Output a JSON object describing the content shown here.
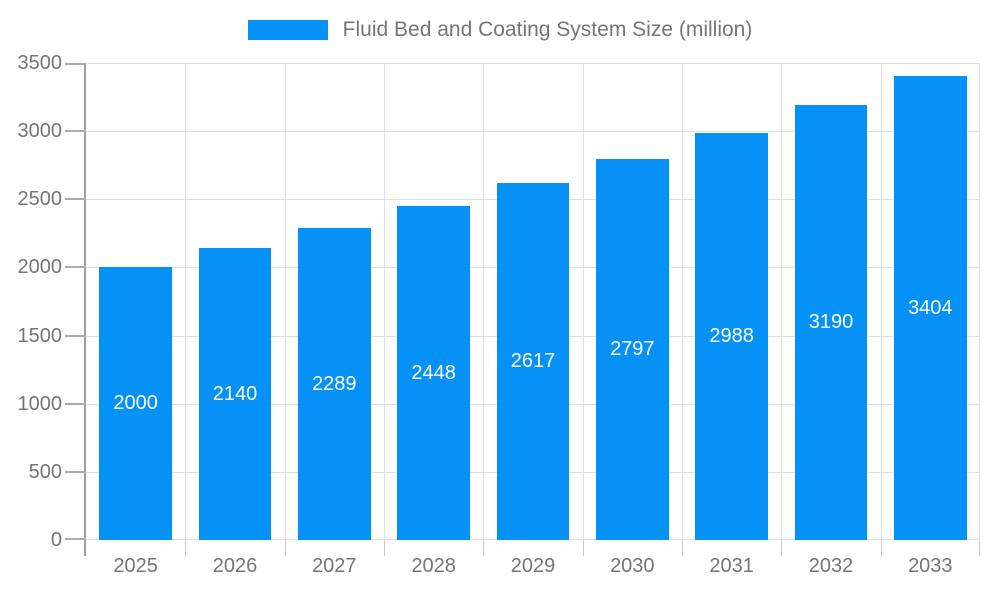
{
  "legend": {
    "label": "Fluid Bed and Coating System Size (million)"
  },
  "colors": {
    "bar": "#0691f6",
    "grid": "#e0e0e0",
    "axis": "#9e9e9e",
    "tick": "#cccccc",
    "text": "#757575",
    "bar_label_text": "#ffffff",
    "background": "#ffffff"
  },
  "chart_data": {
    "type": "bar",
    "title": "Fluid Bed and Coating System Size (million)",
    "series_name": "Fluid Bed and Coating System Size (million)",
    "categories": [
      "2025",
      "2026",
      "2027",
      "2028",
      "2029",
      "2030",
      "2031",
      "2032",
      "2033"
    ],
    "values": [
      2000,
      2140,
      2289,
      2448,
      2617,
      2797,
      2988,
      3190,
      3404
    ],
    "xlabel": "",
    "ylabel": "",
    "ylim": [
      0,
      3500
    ],
    "ytick_step": 500,
    "yticks": [
      0,
      500,
      1000,
      1500,
      2000,
      2500,
      3000,
      3500
    ],
    "grid": true,
    "legend_position": "top-center",
    "value_label_position": "inside-center"
  }
}
